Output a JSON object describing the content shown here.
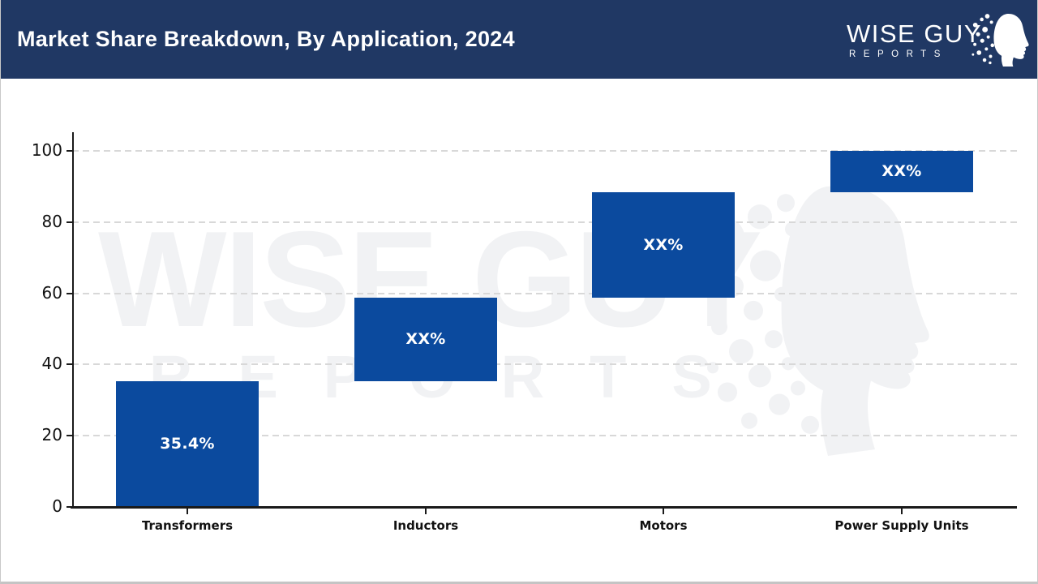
{
  "header": {
    "title": "Market Share Breakdown, By Application, 2024",
    "background_color": "#203864",
    "logo": {
      "name": "WISE GUY",
      "subname": "REPORTS"
    }
  },
  "watermark": {
    "text_primary": "WISE GUY",
    "text_secondary": "REPORTS"
  },
  "chart_data": {
    "type": "bar",
    "subtype": "waterfall",
    "title": "Market Share Breakdown, By Application, 2024",
    "categories": [
      "Transformers",
      "Inductors",
      "Motors",
      "Power Supply Units"
    ],
    "series": [
      {
        "name": "Market share by application (%)",
        "segments": [
          {
            "category": "Transformers",
            "start": 0,
            "end": 35.4,
            "label": "35.4%"
          },
          {
            "category": "Inductors",
            "start": 35.4,
            "end": 58.8,
            "label": "XX%"
          },
          {
            "category": "Motors",
            "start": 58.8,
            "end": 88.4,
            "label": "XX%"
          },
          {
            "category": "Power Supply Units",
            "start": 88.4,
            "end": 100,
            "label": "XX%"
          }
        ]
      }
    ],
    "xlabel": "",
    "ylabel": "",
    "ylim": [
      0,
      105
    ],
    "yticks": [
      0,
      20,
      40,
      60,
      80,
      100
    ],
    "grid": "horizontal-dashed",
    "legend": "none",
    "bar_color": "#0b4a9e",
    "bar_label_color": "#ffffff",
    "axis_color": "#1a1a1a",
    "gridline_color": "#d8d8d8"
  }
}
